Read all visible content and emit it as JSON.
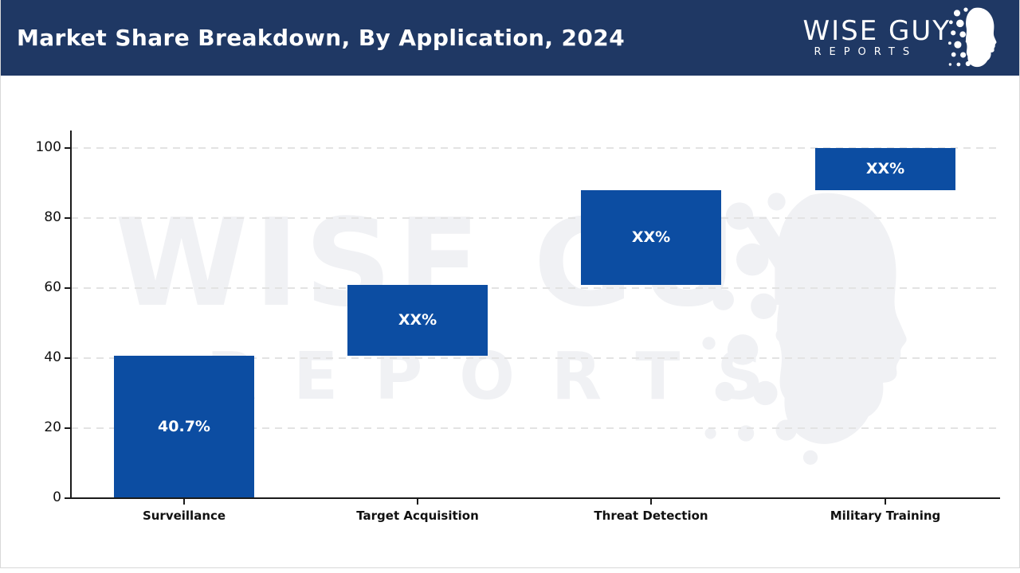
{
  "header": {
    "title": "Market Share Breakdown, By Application, 2024",
    "logo": {
      "wordmark": "WISE GUY",
      "subtext": "REPORTS"
    }
  },
  "watermark": {
    "line1": "WISE GUY",
    "line2": "REPORTS"
  },
  "colors": {
    "header-bg": "#1f3864",
    "bar-blue": "#0c4da2",
    "watermark-gray": "#f0f1f4",
    "grid-gray": "#e3e3e3",
    "axis-black": "#1a1a1a"
  },
  "chart_data": {
    "type": "bar",
    "subtype": "waterfall",
    "title": "Market Share Breakdown, By Application, 2024",
    "categories": [
      "Surveillance",
      "Target Acquisition",
      "Threat Detection",
      "Military Training"
    ],
    "segments": [
      {
        "category": "Surveillance",
        "start": 0,
        "end": 40.7,
        "value": 40.7,
        "label": "40.7%"
      },
      {
        "category": "Target Acquisition",
        "start": 40.7,
        "end": 61,
        "value": 20.3,
        "label": "XX%"
      },
      {
        "category": "Threat Detection",
        "start": 61,
        "end": 88,
        "value": 27,
        "label": "XX%"
      },
      {
        "category": "Military Training",
        "start": 88,
        "end": 100,
        "value": 12,
        "label": "XX%"
      }
    ],
    "xlabel": "",
    "ylabel": "",
    "ylim": [
      0,
      100
    ],
    "yticks": [
      0,
      20,
      40,
      60,
      80,
      100
    ],
    "grid": "horizontal-dashed",
    "legend": "none",
    "bar_color": "#0c4da2",
    "bar_label_color": "#ffffff"
  }
}
